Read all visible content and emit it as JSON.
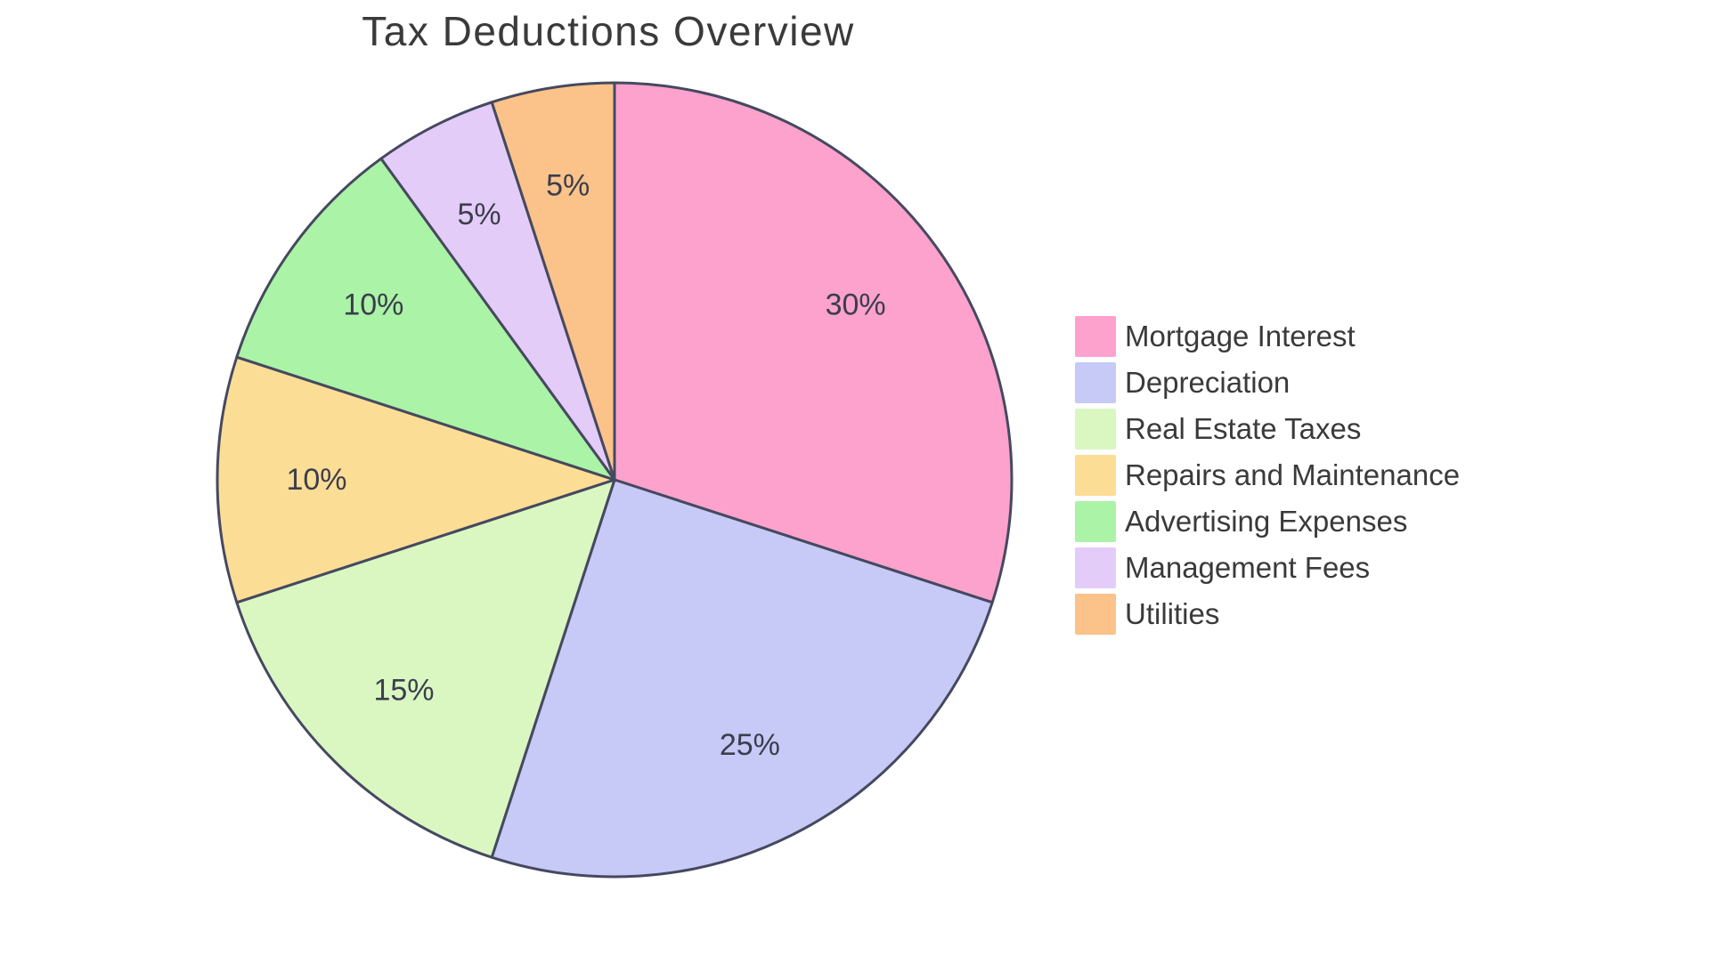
{
  "title": "Tax Deductions Overview",
  "chart_data": {
    "type": "pie",
    "title": "Tax Deductions Overview",
    "categories": [
      "Mortgage Interest",
      "Depreciation",
      "Real Estate Taxes",
      "Repairs and Maintenance",
      "Advertising Expenses",
      "Management Fees",
      "Utilities"
    ],
    "values": [
      30,
      25,
      15,
      10,
      10,
      5,
      5
    ],
    "slice_labels": [
      "30%",
      "25%",
      "15%",
      "10%",
      "10%",
      "5%",
      "5%"
    ],
    "colors": [
      "#FCA2CD",
      "#C7C9F6",
      "#DAF7C2",
      "#FCDD96",
      "#ABF3A6",
      "#E4CCF9",
      "#FBC28A"
    ],
    "stroke_color": "#45495F",
    "label_color": "#3B3E4C",
    "title_color": "#3A3A3A",
    "start_angle": 90,
    "direction": "clockwise",
    "pct_distance": 0.75,
    "legend_position": "right",
    "grid": false
  }
}
